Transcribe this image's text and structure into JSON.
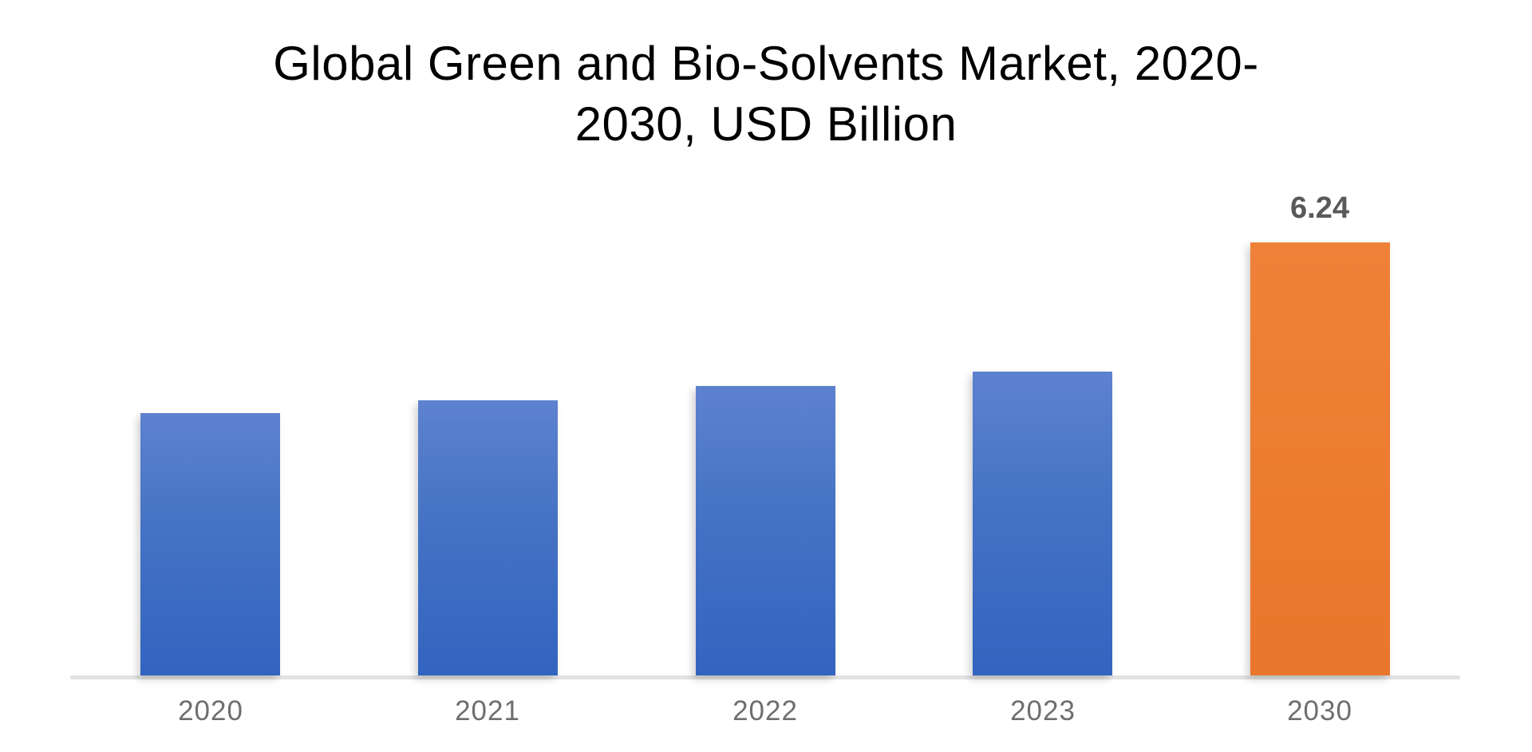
{
  "chart_data": {
    "type": "bar",
    "title": "Global Green and Bio-Solvents Market, 2020-2030, USD Billion",
    "title_lines": [
      "Global Green and Bio-Solvents Market, 2020-",
      "2030, USD Billion"
    ],
    "unit": "USD Billion",
    "categories": [
      "2020",
      "2021",
      "2022",
      "2023",
      "2030"
    ],
    "values": [
      3.78,
      3.97,
      4.17,
      4.38,
      6.24
    ],
    "data_labels": [
      "",
      "",
      "",
      "",
      "6.24"
    ],
    "highlight_index": 4,
    "xlabel": "",
    "ylabel": "",
    "ylim": [
      0,
      7
    ],
    "grid": false,
    "legend": false,
    "colors": {
      "bar_blue": "#4472c4",
      "bar_blue_top": "#5d82cf",
      "bar_blue_bottom": "#3264c0",
      "bar_orange": "#ed7d31",
      "bar_orange_top": "#f08138",
      "bar_orange_bottom": "#e8762c",
      "axis_line": "#e2e2e2",
      "tick_label": "#6e6e6e",
      "data_label": "#595959",
      "title": "#000000",
      "background": "#ffffff"
    }
  }
}
